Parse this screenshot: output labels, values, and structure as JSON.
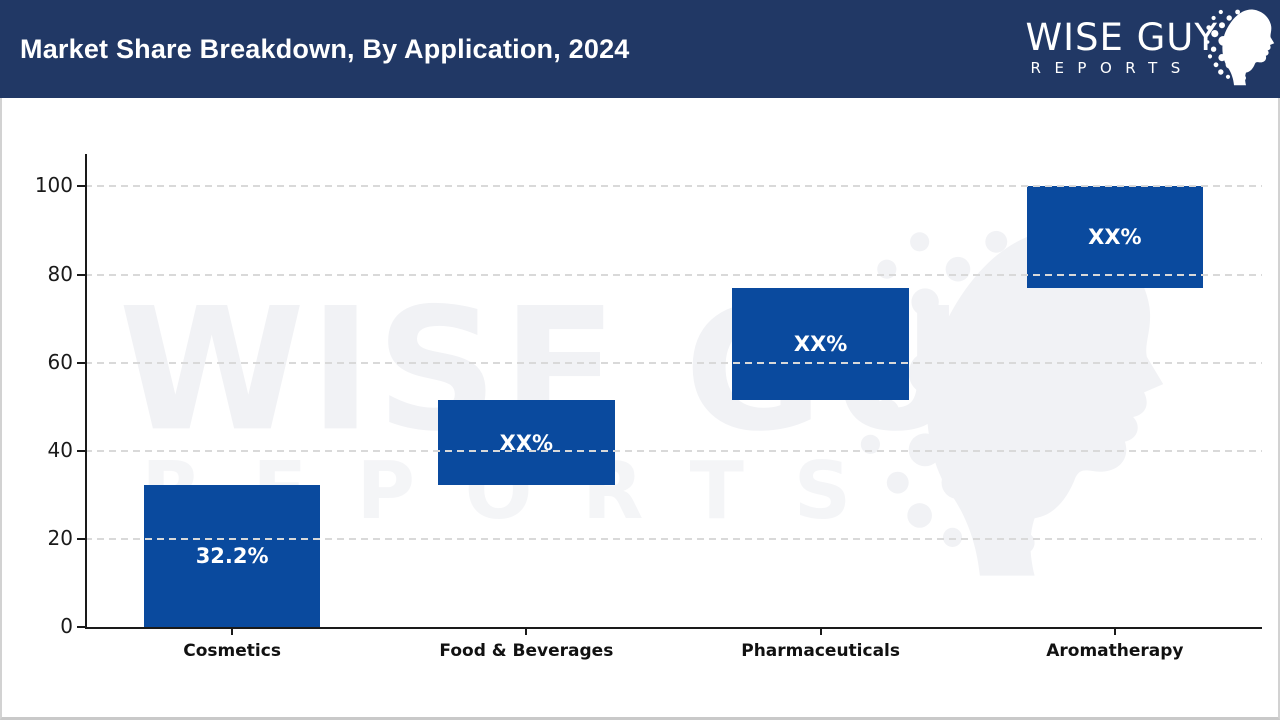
{
  "header": {
    "title": "Market Share Breakdown, By Application, 2024",
    "bg_color": "#213865",
    "text_color": "#ffffff",
    "logo": {
      "line1": "WISE GUY",
      "line2": "REPORTS"
    }
  },
  "watermark": {
    "line1": "WISE GUY",
    "line2": "REPORTS",
    "color": "#f1f2f5"
  },
  "chart_data": {
    "type": "bar",
    "subtype": "waterfall",
    "title": "Market Share Breakdown, By Application, 2024",
    "categories": [
      "Cosmetics",
      "Food & Beverages",
      "Pharmaceuticals",
      "Aromatherapy"
    ],
    "series": [
      {
        "name": "Market share (%)",
        "base": [
          0,
          32.2,
          51.5,
          77
        ],
        "top": [
          32.2,
          51.5,
          77,
          100
        ]
      }
    ],
    "bar_labels": [
      "32.2%",
      "XX%",
      "XX%",
      "XX%"
    ],
    "xlabel": "",
    "ylabel": "",
    "yticks": [
      0,
      20,
      40,
      60,
      80,
      100
    ],
    "ylim": [
      0,
      106
    ],
    "grid": "horizontal-dashed",
    "legend": "none",
    "bar_color": "#0a4a9e",
    "bar_label_color": "#ffffff",
    "axis_color": "#1a1a1a",
    "gridline_color": "#d9d9d9"
  }
}
